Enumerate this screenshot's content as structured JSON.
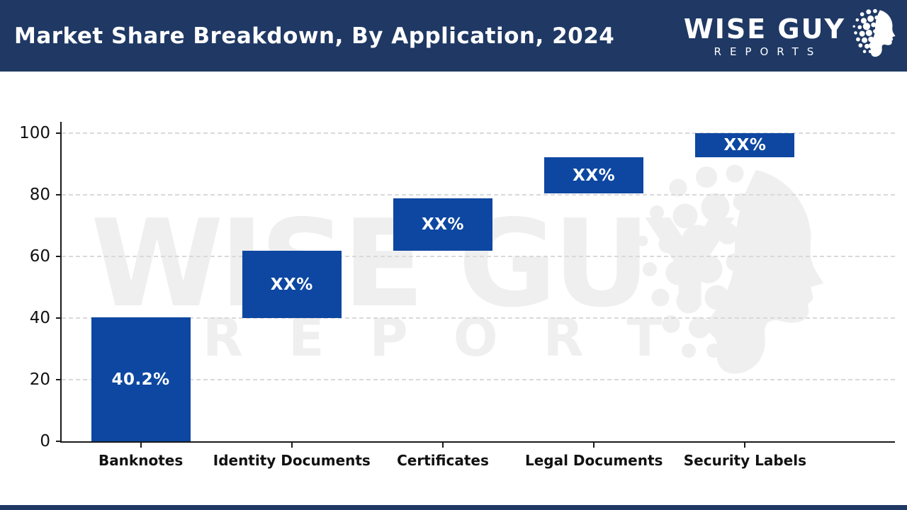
{
  "header": {
    "title": "Market Share Breakdown, By Application, 2024",
    "logo_line1": "WISE GUY",
    "logo_line2": "REPORTS"
  },
  "watermark": {
    "line1": "WISE GUY",
    "line2": "REPORTS"
  },
  "chart_data": {
    "type": "bar",
    "variant": "floating-waterfall",
    "title": "Market Share Breakdown, By Application, 2024",
    "categories": [
      "Banknotes",
      "Identity Documents",
      "Certificates",
      "Legal Documents",
      "Security Labels"
    ],
    "segments": [
      {
        "category": "Banknotes",
        "start": 0,
        "end": 40.2,
        "label": "40.2%"
      },
      {
        "category": "Identity Documents",
        "start": 40.0,
        "end": 61.8,
        "label": "XX%"
      },
      {
        "category": "Certificates",
        "start": 61.9,
        "end": 78.9,
        "label": "XX%"
      },
      {
        "category": "Legal Documents",
        "start": 80.4,
        "end": 92.2,
        "label": "XX%"
      },
      {
        "category": "Security Labels",
        "start": 92.2,
        "end": 100.0,
        "label": "XX%"
      }
    ],
    "ylim": [
      0,
      100
    ],
    "yticks": [
      0,
      20,
      40,
      60,
      80,
      100
    ],
    "xlabel": "",
    "ylabel": "",
    "grid": "horizontal-dashed",
    "legend": "none",
    "bar_color": "#0d47a1",
    "bar_label_color": "#ffffff"
  },
  "colors": {
    "banner": "#1f3864",
    "bar": "#0d47a1",
    "gridline": "#d9d9d9",
    "watermark": "#efefef",
    "axis": "#1a1a1a"
  }
}
